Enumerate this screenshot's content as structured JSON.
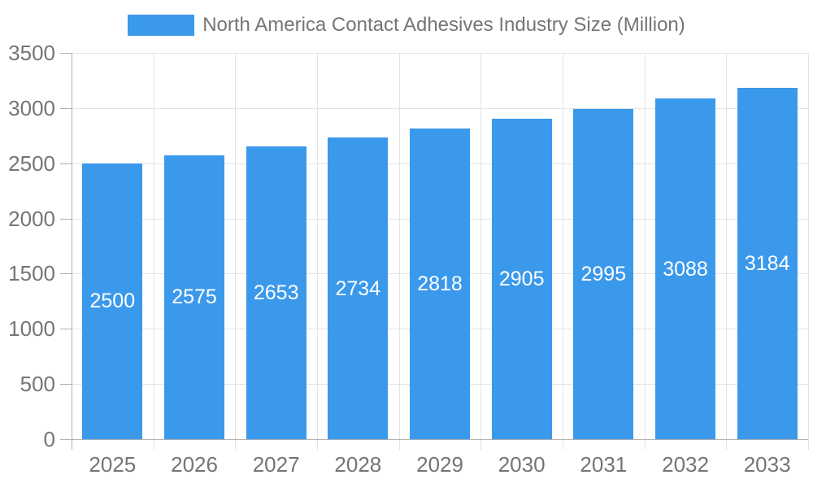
{
  "legend": {
    "label": "North America Contact Adhesives Industry Size (Million)",
    "swatch_color": "#3B99EC"
  },
  "chart_data": {
    "type": "bar",
    "title": "North America Contact Adhesives Industry Size (Million)",
    "categories": [
      "2025",
      "2026",
      "2027",
      "2028",
      "2029",
      "2030",
      "2031",
      "2032",
      "2033"
    ],
    "values": [
      2500,
      2575,
      2653,
      2734,
      2818,
      2905,
      2995,
      3088,
      3184
    ],
    "xlabel": "",
    "ylabel": "",
    "ylim": [
      0,
      3500
    ],
    "yticks": [
      0,
      500,
      1000,
      1500,
      2000,
      2500,
      3000,
      3500
    ],
    "grid": true,
    "legend_position": "top",
    "bar_color": "#3B99EC",
    "value_label_color": "#ffffff",
    "axis_label_color": "#757575",
    "gridline_color": "#e3e3e3",
    "axis_line_color": "#b0b0b0",
    "background_color": "#ffffff"
  }
}
